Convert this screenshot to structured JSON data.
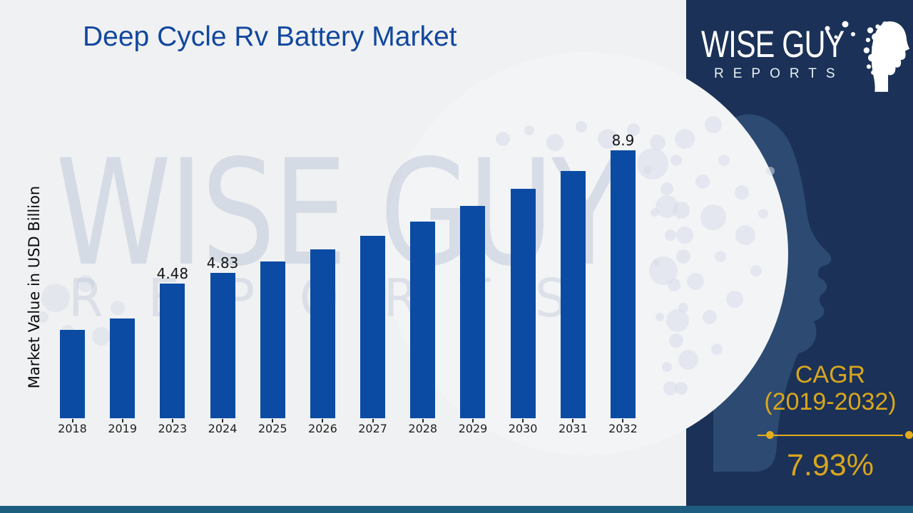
{
  "page": {
    "title": "Deep Cycle Rv Battery Market"
  },
  "brand": {
    "line1": "WISE GUY",
    "line2": "REPORTS"
  },
  "watermark": {
    "line1": "WISE GUY",
    "line2": "REPORTS"
  },
  "cagr": {
    "label": "CAGR",
    "range": "(2019-2032)",
    "value": "7.93%"
  },
  "colors": {
    "bar": "#0b4ba3",
    "title": "#11479e",
    "navy_panel": "#1b3157",
    "gold": "#d9a61e",
    "footer": "#1c5d80",
    "background": "#f0f1f2"
  },
  "chart_data": {
    "type": "bar",
    "title": "Deep Cycle Rv Battery Market",
    "categories": [
      "2018",
      "2019",
      "2023",
      "2024",
      "2025",
      "2026",
      "2027",
      "2028",
      "2029",
      "2030",
      "2031",
      "2032"
    ],
    "values": [
      2.95,
      3.31,
      4.48,
      4.83,
      5.21,
      5.62,
      6.07,
      6.55,
      7.07,
      7.63,
      8.23,
      8.9
    ],
    "data_labels": [
      "",
      "",
      "4.48",
      "4.83",
      "",
      "",
      "",
      "",
      "",
      "",
      "",
      "8.9"
    ],
    "xlabel": "",
    "ylabel": "Market Value in USD Billion",
    "ylim": [
      0,
      9.5
    ],
    "grid": false,
    "legend": null,
    "bar_color": "#0b4ba3"
  }
}
